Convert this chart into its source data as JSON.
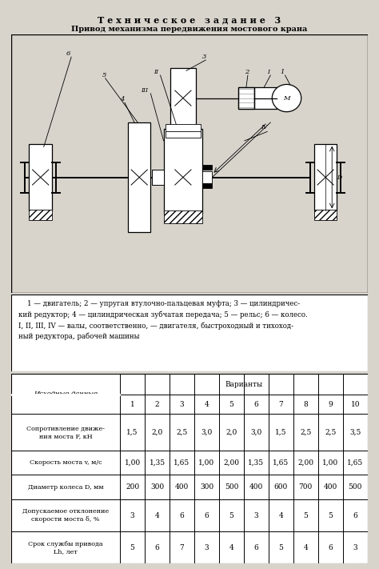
{
  "title": "Т е х н и ч е с к о е   з а д а н и е   3",
  "subtitle": "Привод механизма передвижения мостового крана",
  "bg_color": "#e8e4dc",
  "variant_nums": [
    "1",
    "2",
    "3",
    "4",
    "5",
    "6",
    "7",
    "8",
    "9",
    "10"
  ],
  "rows": [
    {
      "label": "Сопротивление движе-\nния моста F, кН",
      "values": [
        "1,5",
        "2,0",
        "2,5",
        "3,0",
        "2,0",
        "3,0",
        "1,5",
        "2,5",
        "2,5",
        "3,5"
      ]
    },
    {
      "label": "Скорость моста v, м/с",
      "values": [
        "1,00",
        "1,35",
        "1,65",
        "1,00",
        "2,00",
        "1,35",
        "1,65",
        "2,00",
        "1,00",
        "1,65"
      ]
    },
    {
      "label": "Диаметр колеса D, мм",
      "values": [
        "200",
        "300",
        "400",
        "300",
        "500",
        "400",
        "600",
        "700",
        "400",
        "500"
      ]
    },
    {
      "label": "Допускаемое отклонение\nскорости моста δ, %",
      "values": [
        "3",
        "4",
        "6",
        "6",
        "5",
        "3",
        "4",
        "5",
        "5",
        "6"
      ]
    },
    {
      "label": "Срок службы привода\nLh, лет",
      "values": [
        "5",
        "6",
        "7",
        "3",
        "4",
        "6",
        "5",
        "4",
        "6",
        "3"
      ]
    }
  ]
}
